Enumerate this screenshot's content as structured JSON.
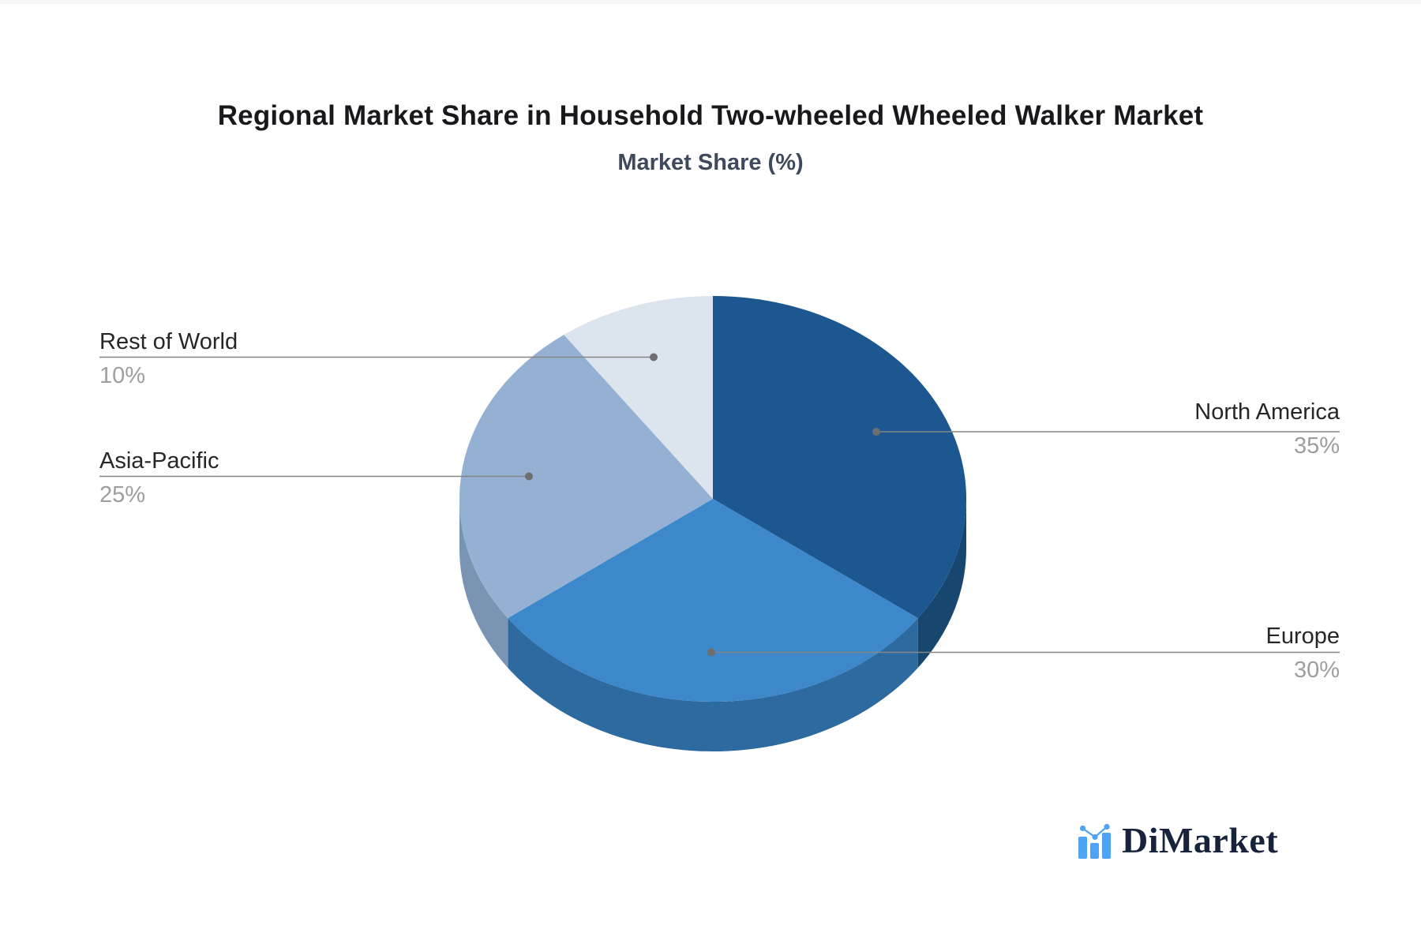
{
  "page": {
    "background": "#ffffff",
    "top_strip_color": "#f7f8f9"
  },
  "chart_data": {
    "type": "pie",
    "style": "3d",
    "title": "Regional Market Share in Household Two-wheeled Wheeled Walker Market",
    "subtitle": "Market Share (%)",
    "unit": "%",
    "start_angle": "12-oclock",
    "direction": "clockwise",
    "labels": [
      "North America",
      "Europe",
      "Asia-Pacific",
      "Rest of World"
    ],
    "values": [
      35,
      30,
      25,
      10
    ],
    "pct_labels": [
      "35%",
      "30%",
      "25%",
      "10%"
    ],
    "colors": [
      "#1D578F",
      "#3C88CA",
      "#94B1D4",
      "#DCE4EE"
    ],
    "side_colors": [
      "#17466E",
      "#2D6AA0",
      "#7A94B4",
      "#C8D4E4"
    ],
    "label_layout": "callout-leader-lines",
    "leader_line_color": "#858585",
    "leader_dot_color": "#6e6e6e",
    "label_text_color": "#262626",
    "value_text_color": "#9e9e9e"
  },
  "branding": {
    "logo_text": "DiMarket",
    "logo_text_color": "#16233a",
    "logo_icon": "bar-chart-sparkline-icon",
    "logo_icon_color": "#4FA3F5"
  }
}
